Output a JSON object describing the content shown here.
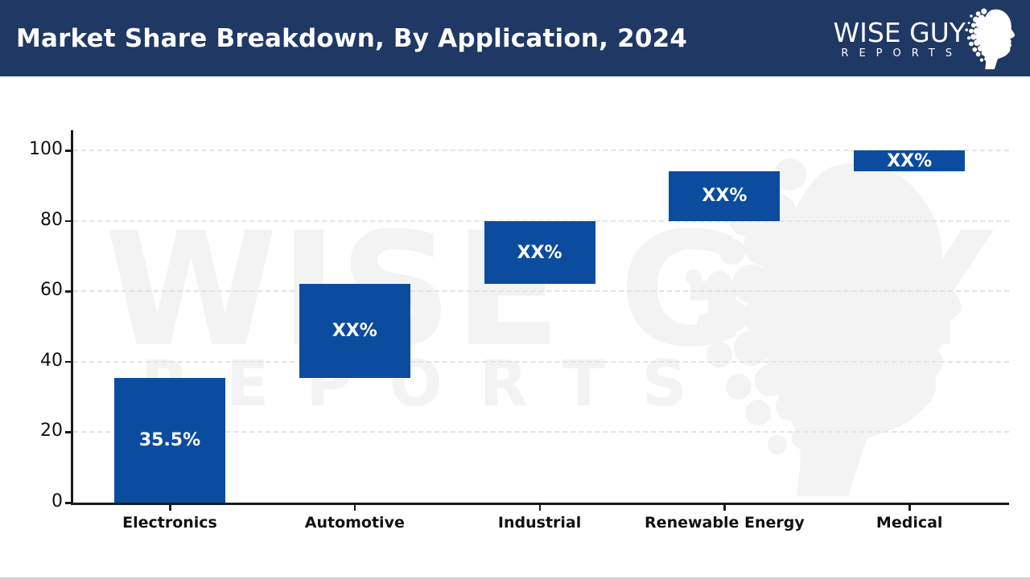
{
  "header": {
    "title": "Market Share Breakdown, By Application, 2024",
    "logo": {
      "line1": "WISE GUY",
      "line2": "REPORTS"
    }
  },
  "watermark": {
    "line1": "WISE GUY",
    "line2": "REPORTS"
  },
  "colors": {
    "header_bg": "#1f3864",
    "bar_blue": "#0c4c9f",
    "grid": "#e3e3e3",
    "axis": "#1a1a1a",
    "bar_label_text": "#ffffff",
    "watermark": "#f3f3f3",
    "bottom_line": "#cfcfcf"
  },
  "chart_data": {
    "type": "bar",
    "subtype": "waterfall",
    "title": "Market Share Breakdown, By Application, 2024",
    "categories": [
      "Electronics",
      "Automotive",
      "Industrial",
      "Renewable Energy",
      "Medical"
    ],
    "segments": [
      {
        "category": "Electronics",
        "label": "35.5%",
        "start": 0,
        "end": 35.5
      },
      {
        "category": "Automotive",
        "label": "XX%",
        "start": 35.5,
        "end": 62
      },
      {
        "category": "Industrial",
        "label": "XX%",
        "start": 62,
        "end": 80
      },
      {
        "category": "Renewable Energy",
        "label": "XX%",
        "start": 80,
        "end": 94
      },
      {
        "category": "Medical",
        "label": "XX%",
        "start": 94,
        "end": 100
      }
    ],
    "yticks": [
      0,
      20,
      40,
      60,
      80,
      100
    ],
    "ylim": [
      0,
      105
    ],
    "xlabel": "",
    "ylabel": "",
    "grid": "horizontal-dashed",
    "legend": "none"
  }
}
